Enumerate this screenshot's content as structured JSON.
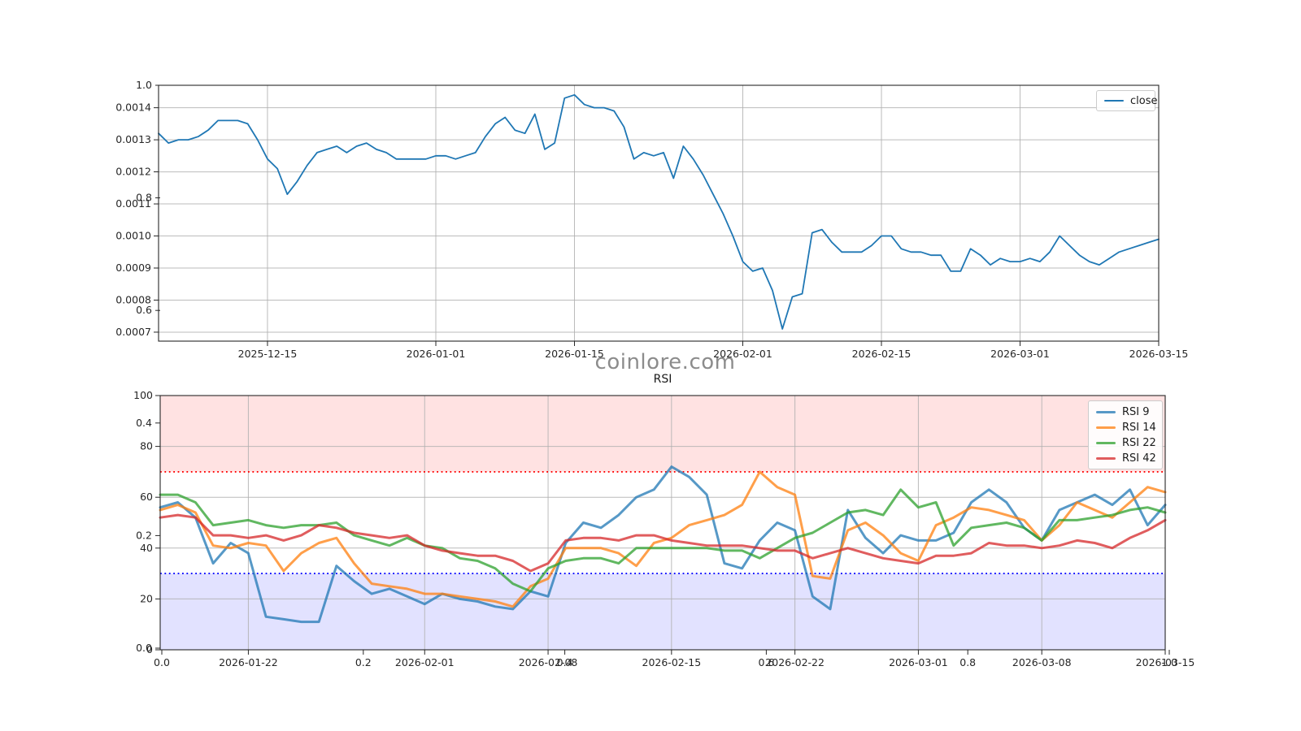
{
  "figure": {
    "watermark": "coinlore.com",
    "background": "#ffffff",
    "grid_color": "#b0b0b0",
    "spine_color": "#262626",
    "text_color": "#262626"
  },
  "overlay_axis": {
    "x_tick_labels": [
      "0.0",
      "0.2",
      "0.4",
      "0.6",
      "0.8",
      "1.0"
    ],
    "y_tick_labels": [
      "0.0",
      "0.2",
      "0.4",
      "0.6",
      "0.8",
      "1.0"
    ]
  },
  "chart_data": [
    {
      "id": "price",
      "type": "line",
      "title": "",
      "legend_position": "upper right",
      "grid": true,
      "start_date": "2025-12-04",
      "freq": "daily",
      "ylim": [
        0.000672,
        0.00147
      ],
      "y_tick_values": [
        0.0007,
        0.0008,
        0.0009,
        0.001,
        0.0011,
        0.0012,
        0.0013,
        0.0014
      ],
      "y_tick_labels": [
        "0.0007",
        "0.0008",
        "0.0009",
        "0.0010",
        "0.0011",
        "0.0012",
        "0.0013",
        "0.0014"
      ],
      "x_ticks": [
        {
          "label": "2025-12-15",
          "day": 11
        },
        {
          "label": "2026-01-01",
          "day": 28
        },
        {
          "label": "2026-01-15",
          "day": 42
        },
        {
          "label": "2026-02-01",
          "day": 59
        },
        {
          "label": "2026-02-15",
          "day": 73
        },
        {
          "label": "2026-03-01",
          "day": 87
        },
        {
          "label": "2026-03-15",
          "day": 101
        }
      ],
      "series": [
        {
          "name": "close",
          "color": "#1f77b4",
          "alpha": 1,
          "width": 1.8,
          "values": [
            0.00132,
            0.00129,
            0.0013,
            0.0013,
            0.00131,
            0.00133,
            0.00136,
            0.00136,
            0.00136,
            0.00135,
            0.0013,
            0.00124,
            0.00121,
            0.00113,
            0.00117,
            0.00122,
            0.00126,
            0.00127,
            0.00128,
            0.00126,
            0.00128,
            0.00129,
            0.00127,
            0.00126,
            0.00124,
            0.00124,
            0.00124,
            0.00124,
            0.00125,
            0.00125,
            0.00124,
            0.00125,
            0.00126,
            0.00131,
            0.00135,
            0.00137,
            0.00133,
            0.00132,
            0.00138,
            0.00127,
            0.00129,
            0.00143,
            0.00144,
            0.00141,
            0.0014,
            0.0014,
            0.00139,
            0.00134,
            0.00124,
            0.00126,
            0.00125,
            0.00126,
            0.00118,
            0.00128,
            0.00124,
            0.00119,
            0.00113,
            0.00107,
            0.001,
            0.00092,
            0.00089,
            0.0009,
            0.00083,
            0.00071,
            0.00081,
            0.00082,
            0.00101,
            0.00102,
            0.00098,
            0.00095,
            0.00095,
            0.00095,
            0.00097,
            0.001,
            0.001,
            0.00096,
            0.00095,
            0.00095,
            0.00094,
            0.00094,
            0.00089,
            0.00089,
            0.00096,
            0.00094,
            0.00091,
            0.00093,
            0.00092,
            0.00092,
            0.00093,
            0.00092,
            0.00095,
            0.001,
            0.00097,
            0.00094,
            0.00092,
            0.00091,
            0.00093,
            0.00095,
            0.00096,
            0.00097,
            0.00098,
            0.00099
          ]
        }
      ]
    },
    {
      "id": "rsi",
      "type": "line",
      "title": "RSI",
      "legend_position": "upper right",
      "grid": true,
      "start_date": "2026-01-17",
      "freq": "daily",
      "ylim": [
        0,
        100
      ],
      "y_tick_values": [
        0,
        20,
        40,
        60,
        80,
        100
      ],
      "y_tick_labels": [
        "0",
        "20",
        "40",
        "60",
        "80",
        "100"
      ],
      "x_ticks": [
        {
          "label": "2026-01-22",
          "day": 5
        },
        {
          "label": "2026-02-01",
          "day": 15
        },
        {
          "label": "2026-02-08",
          "day": 22
        },
        {
          "label": "2026-02-15",
          "day": 29
        },
        {
          "label": "2026-02-22",
          "day": 36
        },
        {
          "label": "2026-03-01",
          "day": 43
        },
        {
          "label": "2026-03-08",
          "day": 50
        },
        {
          "label": "2026-03-15",
          "day": 57
        }
      ],
      "hlines": [
        {
          "value": 70,
          "color": "#ff0000",
          "style": "dotted",
          "meaning": "overbought"
        },
        {
          "value": 30,
          "color": "#0000ff",
          "style": "dotted",
          "meaning": "oversold"
        }
      ],
      "bands": [
        {
          "from": 70,
          "to": 100,
          "color": "rgba(255,20,20,0.12)",
          "meaning": "overbought-zone"
        },
        {
          "from": 0,
          "to": 30,
          "color": "rgba(20,20,255,0.12)",
          "meaning": "oversold-zone"
        }
      ],
      "series": [
        {
          "name": "RSI 9",
          "color": "#1f77b4",
          "alpha": 0.75,
          "width": 3,
          "values": [
            56,
            58,
            52,
            34,
            42,
            38,
            13,
            12,
            11,
            11,
            33,
            27,
            22,
            24,
            21,
            18,
            22,
            20,
            19,
            17,
            16,
            23,
            21,
            42,
            50,
            48,
            53,
            60,
            63,
            72,
            68,
            61,
            34,
            32,
            43,
            50,
            47,
            21,
            16,
            55,
            44,
            38,
            45,
            43,
            43,
            46,
            58,
            63,
            58,
            48,
            43,
            55,
            58,
            61,
            57,
            63,
            49,
            57
          ]
        },
        {
          "name": "RSI 14",
          "color": "#ff7f0e",
          "alpha": 0.75,
          "width": 3,
          "values": [
            55,
            57,
            54,
            41,
            40,
            42,
            41,
            31,
            38,
            42,
            44,
            34,
            26,
            25,
            24,
            22,
            22,
            21,
            20,
            19,
            17,
            25,
            28,
            40,
            40,
            40,
            38,
            33,
            42,
            44,
            49,
            51,
            53,
            57,
            70,
            64,
            61,
            29,
            28,
            47,
            50,
            45,
            38,
            35,
            49,
            52,
            56,
            55,
            53,
            51,
            43,
            49,
            58,
            55,
            52,
            58,
            64,
            62
          ]
        },
        {
          "name": "RSI 22",
          "color": "#2ca02c",
          "alpha": 0.75,
          "width": 3,
          "values": [
            61,
            61,
            58,
            49,
            50,
            51,
            49,
            48,
            49,
            49,
            50,
            45,
            43,
            41,
            44,
            41,
            40,
            36,
            35,
            32,
            26,
            23,
            32,
            35,
            36,
            36,
            34,
            40,
            40,
            40,
            40,
            40,
            39,
            39,
            36,
            40,
            44,
            46,
            50,
            54,
            55,
            53,
            63,
            56,
            58,
            41,
            48,
            49,
            50,
            48,
            43,
            51,
            51,
            52,
            53,
            55,
            56,
            54
          ]
        },
        {
          "name": "RSI 42",
          "color": "#d62728",
          "alpha": 0.75,
          "width": 3,
          "values": [
            52,
            53,
            52,
            45,
            45,
            44,
            45,
            43,
            45,
            49,
            48,
            46,
            45,
            44,
            45,
            41,
            39,
            38,
            37,
            37,
            35,
            31,
            34,
            43,
            44,
            44,
            43,
            45,
            45,
            43,
            42,
            41,
            41,
            41,
            40,
            39,
            39,
            36,
            38,
            40,
            38,
            36,
            35,
            34,
            37,
            37,
            38,
            42,
            41,
            41,
            40,
            41,
            43,
            42,
            40,
            44,
            47,
            51
          ]
        }
      ]
    }
  ]
}
